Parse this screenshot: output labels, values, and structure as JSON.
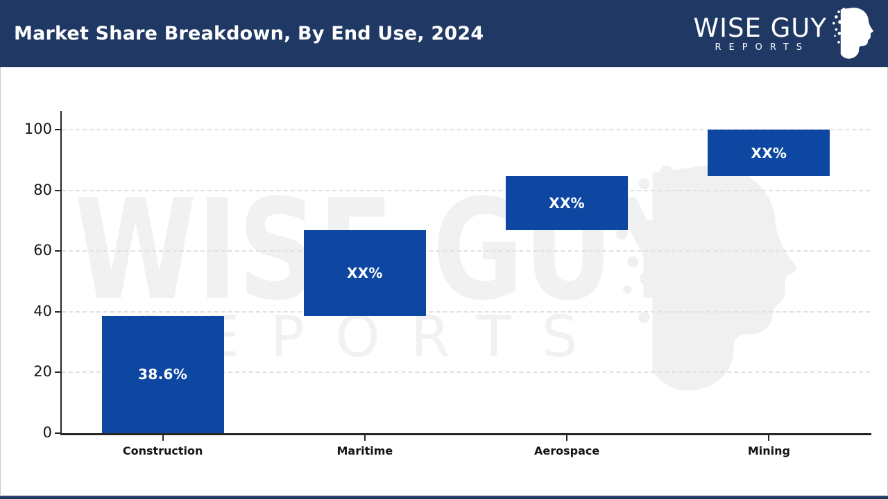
{
  "header": {
    "title": "Market Share Breakdown, By End Use, 2024",
    "bg_color": "#203864",
    "logo": {
      "line1": "WISE GUY",
      "line2": "REPORTS"
    }
  },
  "watermark": {
    "line1": "WISE GUY",
    "line2": "REPORTS"
  },
  "chart_data": {
    "type": "bar",
    "subtype": "waterfall",
    "title": "Market Share Breakdown, By End Use, 2024",
    "categories": [
      "Construction",
      "Maritime",
      "Aerospace",
      "Mining"
    ],
    "bars": [
      {
        "category": "Construction",
        "start": 0,
        "end": 38.6,
        "label": "38.6%"
      },
      {
        "category": "Maritime",
        "start": 38.6,
        "end": 67.0,
        "label": "XX%"
      },
      {
        "category": "Aerospace",
        "start": 67.0,
        "end": 84.7,
        "label": "XX%"
      },
      {
        "category": "Mining",
        "start": 84.7,
        "end": 100.0,
        "label": "XX%"
      }
    ],
    "yticks": [
      0,
      20,
      40,
      60,
      80,
      100
    ],
    "ylim": [
      0,
      106
    ],
    "xlabel": "",
    "ylabel": "",
    "grid": "horizontal-dashed",
    "legend": "none",
    "bar_color": "#0d47a1",
    "bar_label_color": "#ffffff",
    "axis_color": "#262626",
    "grid_color": "#e0e0e0"
  }
}
